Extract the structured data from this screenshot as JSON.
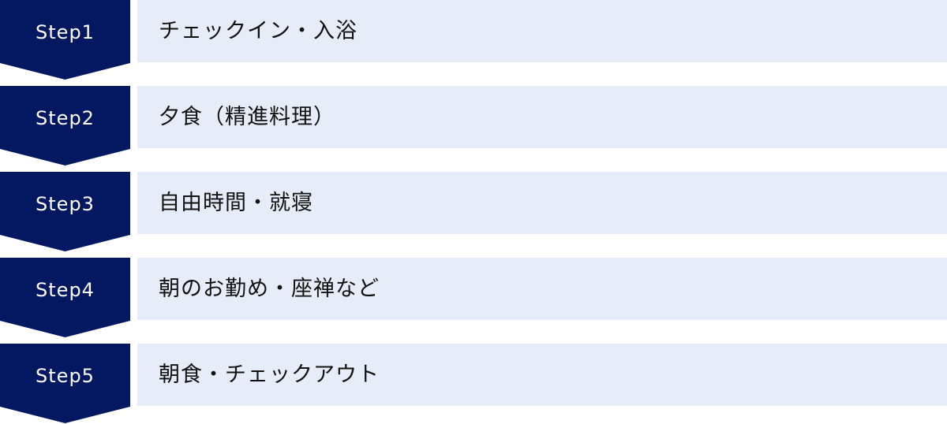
{
  "colors": {
    "badge": "#041862",
    "box": "#e6ecf8"
  },
  "steps": [
    {
      "label": "Step1",
      "text": "チェックイン・入浴"
    },
    {
      "label": "Step2",
      "text": "夕食（精進料理）"
    },
    {
      "label": "Step3",
      "text": "自由時間・就寝"
    },
    {
      "label": "Step4",
      "text": "朝のお勤め・座禅など"
    },
    {
      "label": "Step5",
      "text": "朝食・チェックアウト"
    }
  ]
}
